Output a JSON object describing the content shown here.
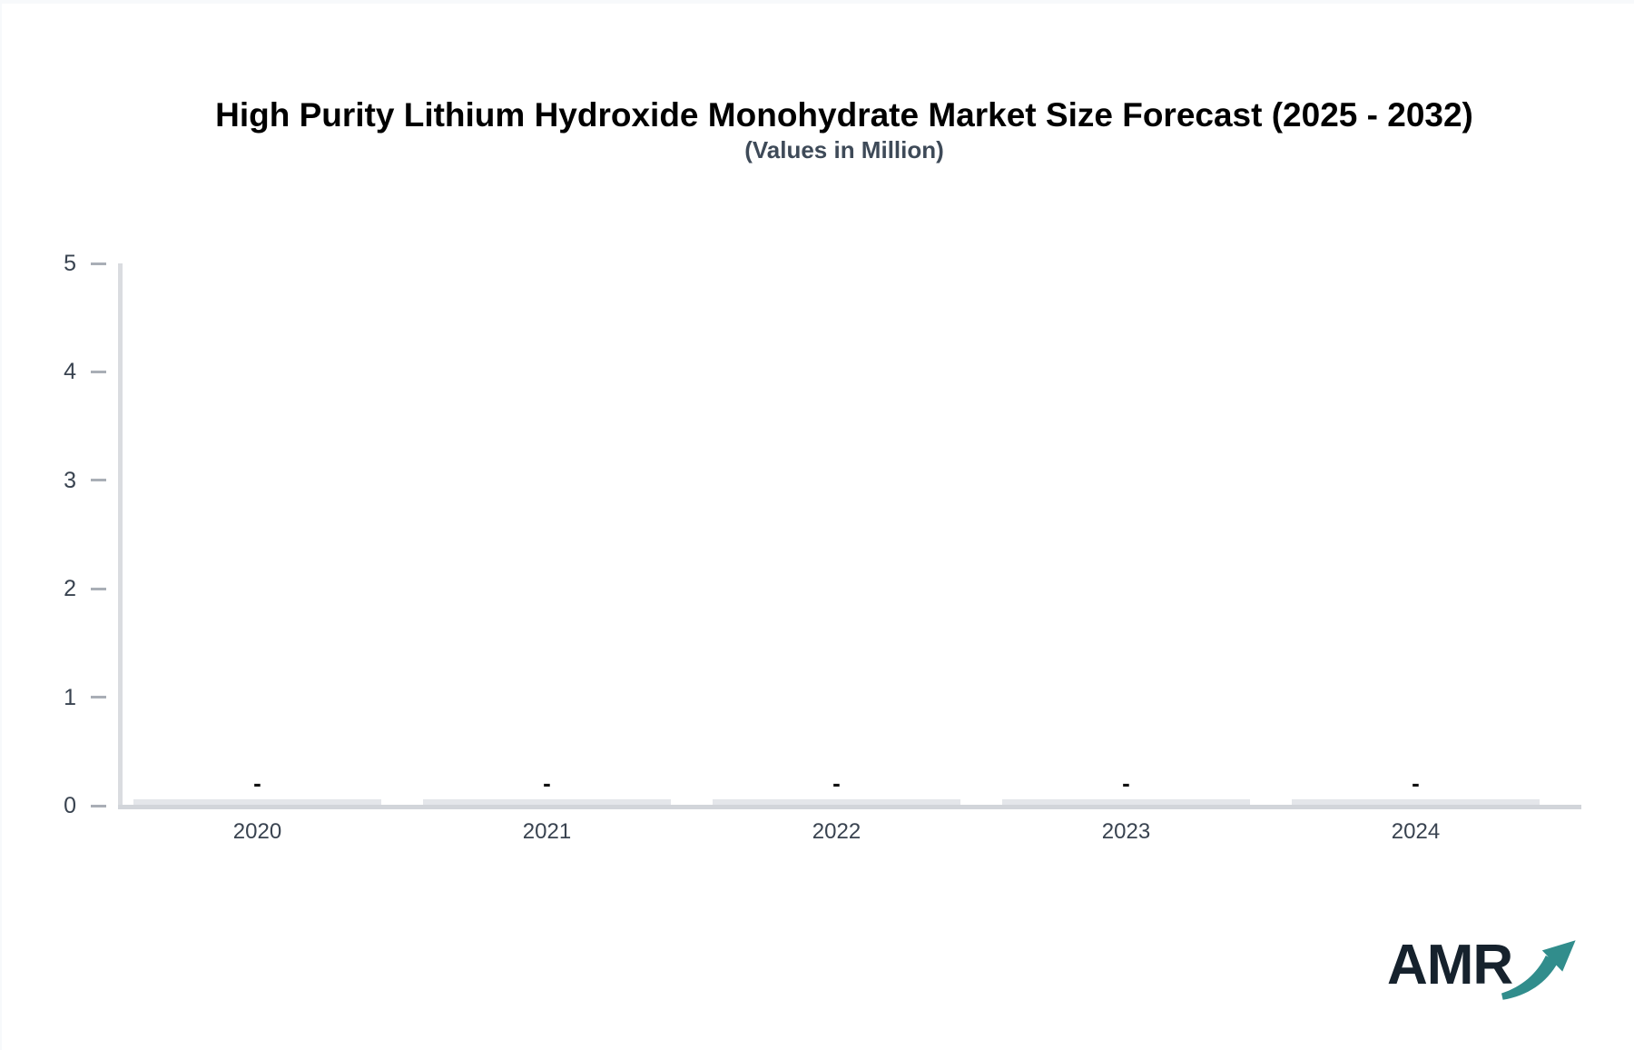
{
  "header": {
    "title": "High Purity Lithium Hydroxide Monohydrate Market Size Forecast (2025 - 2032)",
    "subtitle": "(Values in Million)"
  },
  "chart_data": {
    "type": "bar",
    "title": "High Purity Lithium Hydroxide Monohydrate Market Size Forecast (2025 - 2032)",
    "subtitle": "(Values in Million)",
    "categories": [
      "2020",
      "2021",
      "2022",
      "2023",
      "2024"
    ],
    "values": [
      null,
      null,
      null,
      null,
      null
    ],
    "value_labels": [
      "-",
      "-",
      "-",
      "-",
      "-"
    ],
    "ylim": [
      0,
      5
    ],
    "yticks": [
      "0",
      "1",
      "2",
      "3",
      "4",
      "5"
    ],
    "xlabel": "",
    "ylabel": "",
    "grid": false,
    "legend": false,
    "bar_color": "#e4e6ea"
  },
  "colors": {
    "title": "#000000",
    "subtitle": "#3e4a58",
    "axis_label": "#394350",
    "tick_mark": "#a9aeb6",
    "y_axis_line": "#dadce0",
    "x_axis_line": "#d2d5da",
    "bar": "#e4e6ea",
    "value_label": "#111111",
    "logo_text": "#16222d",
    "logo_arrow": "#318d8c"
  },
  "logo": {
    "text": "AMR",
    "arrow_icon_name": "growth-arrow-icon"
  }
}
